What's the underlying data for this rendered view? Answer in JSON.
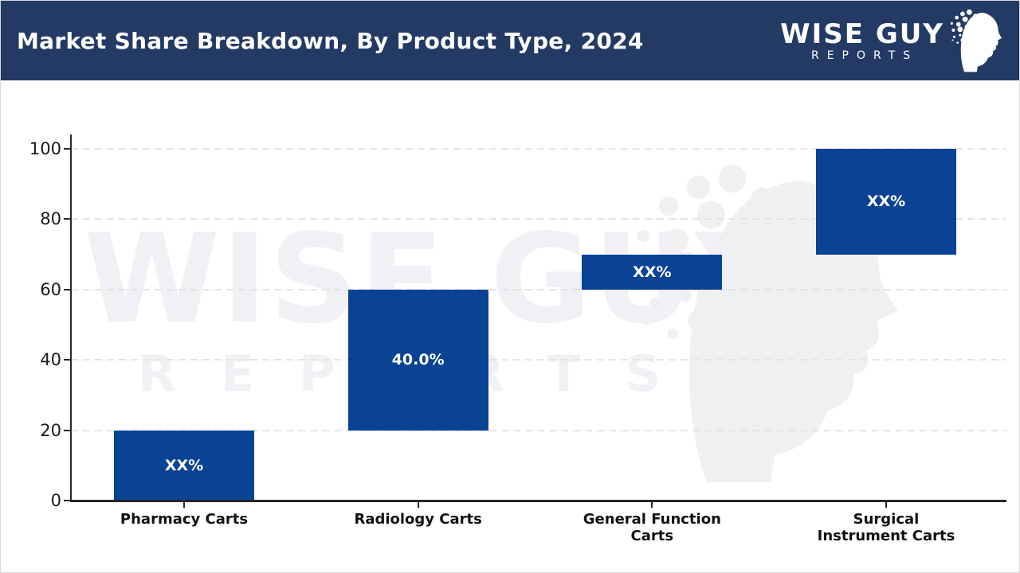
{
  "header": {
    "title": "Market Share Breakdown, By Product Type, 2024",
    "logo": {
      "line1": "WISE GUY",
      "line2": "REPORTS"
    }
  },
  "watermark": {
    "line1": "WISE GUY",
    "line2": "REPORTS"
  },
  "chart_data": {
    "type": "bar",
    "subtype": "floating-segment-waterfall",
    "title": "Market Share Breakdown, By Product Type, 2024",
    "categories": [
      "Pharmacy Carts",
      "Radiology Carts",
      "General Function Carts",
      "Surgical Instrument Carts"
    ],
    "x_tick_labels": [
      [
        "Pharmacy Carts"
      ],
      [
        "Radiology Carts"
      ],
      [
        "General Function",
        "Carts"
      ],
      [
        "Surgical",
        "Instrument Carts"
      ]
    ],
    "segments": [
      {
        "category": "Pharmacy Carts",
        "start": 0,
        "end": 20,
        "label": "XX%"
      },
      {
        "category": "Radiology Carts",
        "start": 20,
        "end": 60,
        "label": "40.0%"
      },
      {
        "category": "General Function Carts",
        "start": 60,
        "end": 70,
        "label": "XX%"
      },
      {
        "category": "Surgical Instrument Carts",
        "start": 70,
        "end": 100,
        "label": "XX%"
      }
    ],
    "xlabel": "",
    "ylabel": "",
    "ylim": [
      0,
      100
    ],
    "yticks": [
      0,
      20,
      40,
      60,
      80,
      100
    ],
    "grid": {
      "axis": "y",
      "style": "dashed"
    },
    "legend": null,
    "colors": {
      "bar": "#0a4296",
      "bar_label": "#ffffff",
      "axis": "#262626",
      "gridline": "#e4e4e4",
      "header_bg": "#223a64",
      "header_text": "#ffffff",
      "watermark": "#f0f1f4",
      "page_border": "#d9d9d9"
    }
  }
}
